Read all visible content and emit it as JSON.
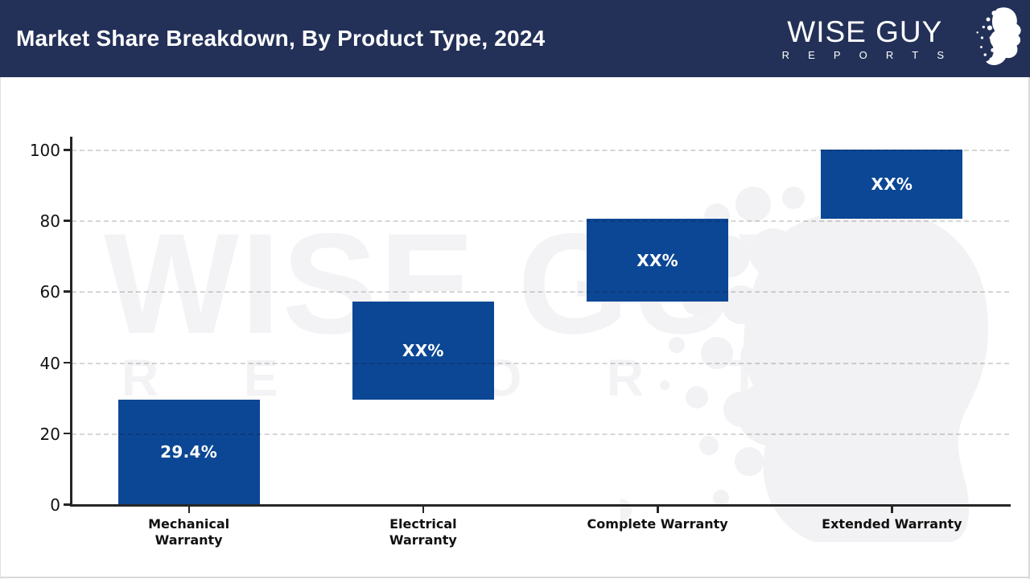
{
  "header": {
    "title": "Market Share Breakdown, By Product Type, 2024",
    "bg_color": "#233158",
    "logo": {
      "line1": "WISE GUY",
      "line2": "REPORTS"
    }
  },
  "watermark": {
    "line1": "WISE GUY",
    "line2": "REPORTS"
  },
  "chart_data": {
    "type": "bar",
    "subtype": "waterfall",
    "title": "Market Share Breakdown, By Product Type, 2024",
    "xlabel": "",
    "ylabel": "",
    "ylim": [
      0,
      100
    ],
    "yticks": [
      0,
      20,
      40,
      60,
      80,
      100
    ],
    "grid": "horizontal-dashed",
    "legend": "none",
    "bar_color": "#0c4795",
    "bar_label_color": "#ffffff",
    "categories": [
      "Mechanical Warranty",
      "Electrical Warranty",
      "Complete Warranty",
      "Extended Warranty"
    ],
    "category_label_lines": [
      [
        "Mechanical",
        "Warranty"
      ],
      [
        "Electrical",
        "Warranty"
      ],
      [
        "Complete Warranty"
      ],
      [
        "Extended Warranty"
      ]
    ],
    "segments": [
      {
        "category": "Mechanical Warranty",
        "start": 0,
        "end": 29.4,
        "label": "29.4%"
      },
      {
        "category": "Electrical Warranty",
        "start": 29.4,
        "end": 57.1,
        "label": "XX%"
      },
      {
        "category": "Complete Warranty",
        "start": 57.1,
        "end": 80.5,
        "label": "XX%"
      },
      {
        "category": "Extended Warranty",
        "start": 80.5,
        "end": 100,
        "label": "XX%"
      }
    ]
  }
}
